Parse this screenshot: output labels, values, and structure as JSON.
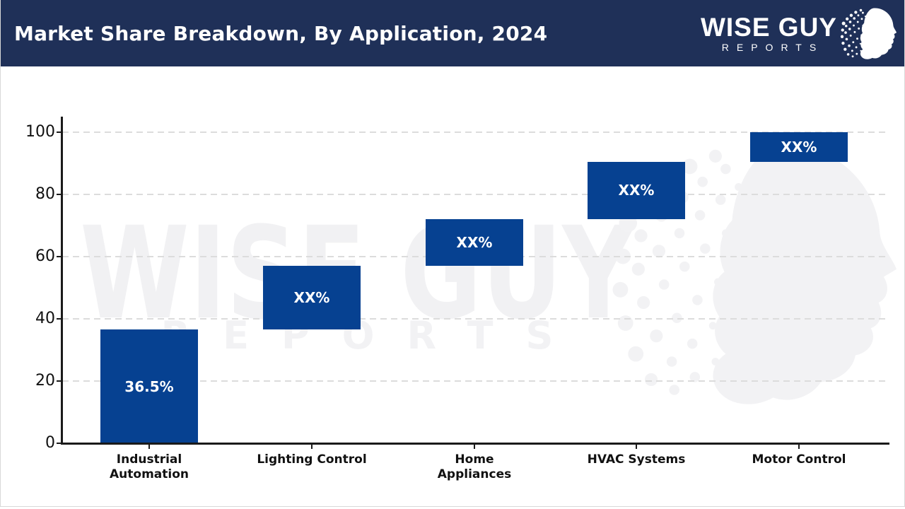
{
  "header": {
    "title": "Market Share Breakdown, By Application, 2024",
    "logo": {
      "line1": "WISE GUY",
      "line2": "REPORTS"
    }
  },
  "watermark": {
    "line1": "WISE GUY",
    "line2": "REPORTS"
  },
  "colors": {
    "header_bg": "#1f3058",
    "bar": "#064191",
    "bar_label": "#ffffff",
    "grid": "#dcdcdc",
    "axis": "#1a1a1a",
    "watermark": "#f1f1f3"
  },
  "chart_data": {
    "type": "bar",
    "subtype": "waterfall",
    "title": "Market Share Breakdown, By Application, 2024",
    "categories": [
      "Industrial Automation",
      "Lighting Control",
      "Home Appliances",
      "HVAC Systems",
      "Motor Control"
    ],
    "segments": [
      {
        "category": "Industrial Automation",
        "start": 0,
        "end": 36.5,
        "label": "36.5%"
      },
      {
        "category": "Lighting Control",
        "start": 36.5,
        "end": 57,
        "label": "XX%"
      },
      {
        "category": "Home Appliances",
        "start": 57,
        "end": 72,
        "label": "XX%"
      },
      {
        "category": "HVAC Systems",
        "start": 72,
        "end": 90.5,
        "label": "XX%"
      },
      {
        "category": "Motor Control",
        "start": 90.5,
        "end": 100,
        "label": "XX%"
      }
    ],
    "yticks": [
      0,
      20,
      40,
      60,
      80,
      100
    ],
    "ylim": [
      0,
      105
    ],
    "xlabel": "",
    "ylabel": "",
    "grid": {
      "horizontal": true,
      "style": "dashed"
    },
    "legend": null,
    "bar_color": "#064191",
    "label_color": "#ffffff"
  }
}
